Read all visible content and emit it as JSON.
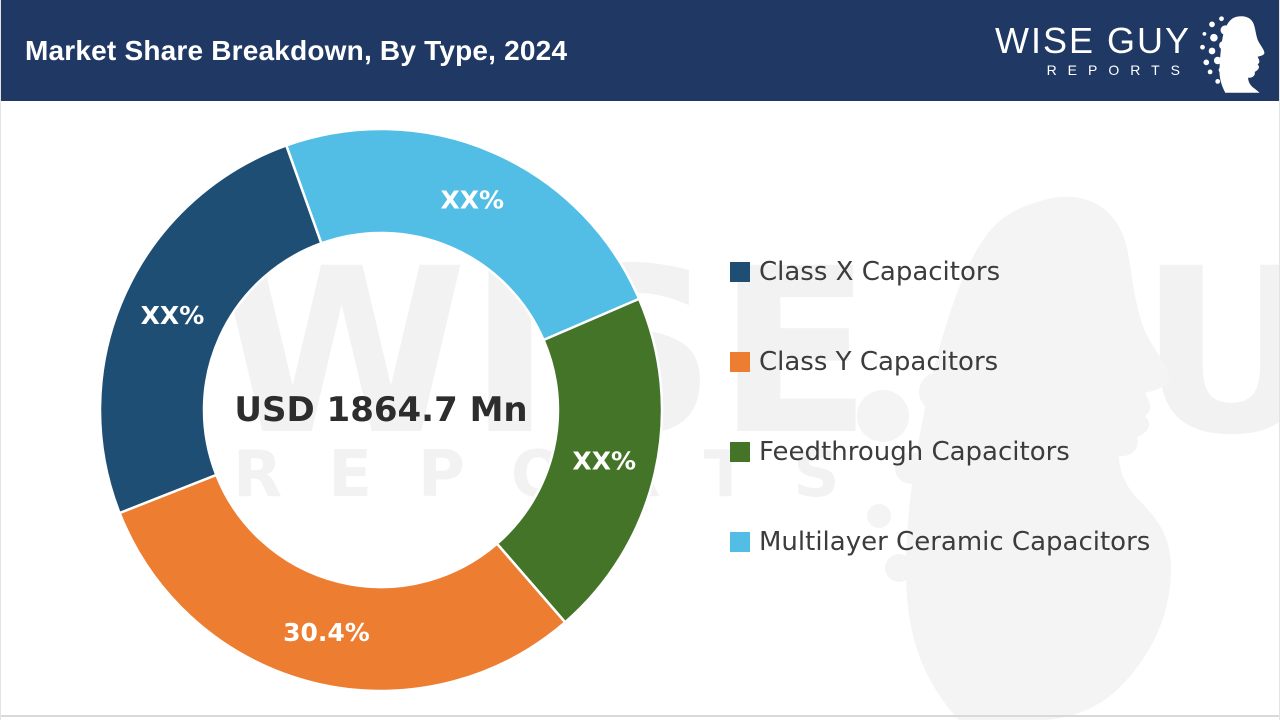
{
  "header": {
    "title": "Market Share Breakdown, By Type, 2024",
    "bg_color": "#1f3864",
    "logo": {
      "line1": "WISE GUY",
      "line2": "REPORTS"
    }
  },
  "watermark": {
    "line1": "WISE GUY",
    "line2": "REPORTS"
  },
  "chart_data": {
    "type": "pie",
    "subtype": "donut",
    "title": "Market Share Breakdown, By Type, 2024",
    "center_label": "USD 1864.7 Mn",
    "start_angle_deg": 109.7,
    "direction": "clockwise",
    "legend_position": "right",
    "slices": [
      {
        "name": "Multilayer Ceramic Capacitors",
        "value_pct": 24.0,
        "label": "XX%",
        "color": "#52bde5"
      },
      {
        "name": "Feedthrough Capacitors",
        "value_pct": 20.1,
        "label": "XX%",
        "color": "#437428"
      },
      {
        "name": "Class Y Capacitors",
        "value_pct": 30.4,
        "label": "30.4%",
        "color": "#ed7d31"
      },
      {
        "name": "Class X Capacitors",
        "value_pct": 25.5,
        "label": "XX%",
        "color": "#1f4e74"
      }
    ],
    "legend": [
      {
        "label": "Class X Capacitors",
        "color": "#1f4e74"
      },
      {
        "label": "Class Y Capacitors",
        "color": "#ed7d31"
      },
      {
        "label": "Feedthrough Capacitors",
        "color": "#437428"
      },
      {
        "label": "Multilayer Ceramic Capacitors",
        "color": "#52bde5"
      }
    ]
  }
}
